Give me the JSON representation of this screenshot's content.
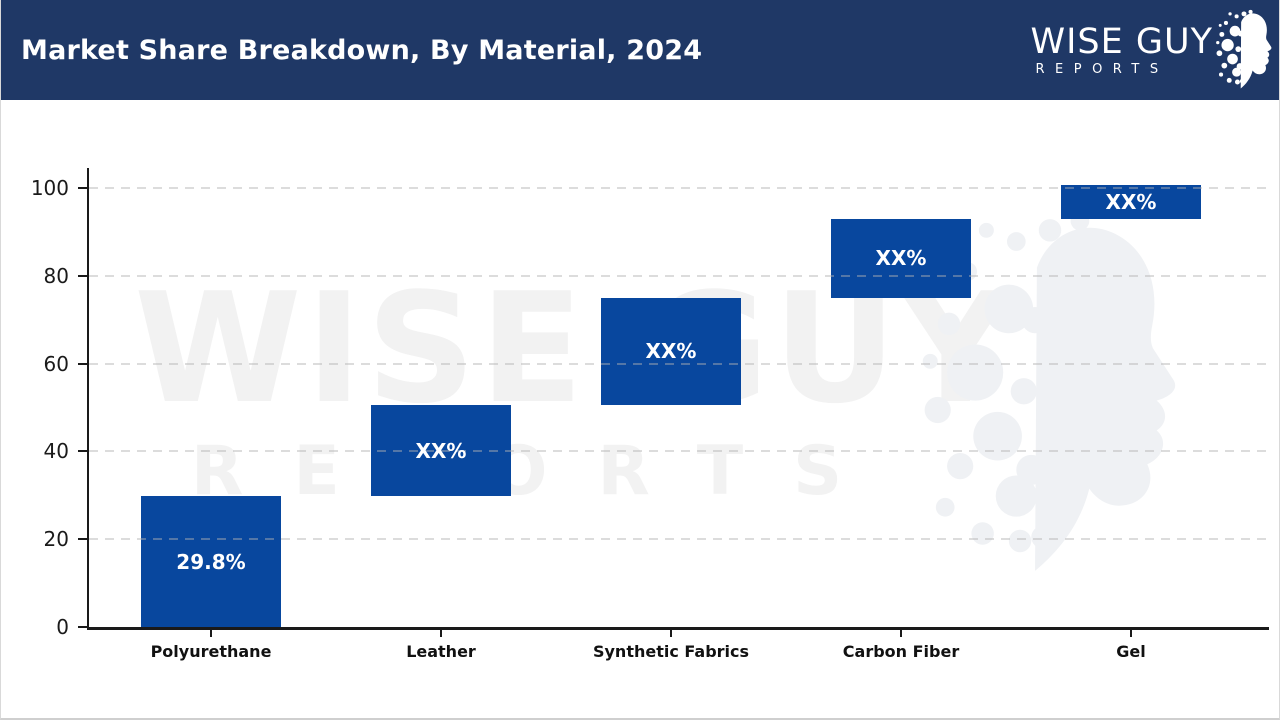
{
  "header": {
    "title": "Market Share Breakdown, By Material, 2024",
    "bg_color": "#1f3866",
    "logo": {
      "name": "WISE GUY",
      "tagline": "REPORTS"
    }
  },
  "watermark": {
    "line1": "WISE GUY",
    "line2": "REPORTS"
  },
  "chart_data": {
    "type": "bar",
    "variant": "floating-waterfall",
    "title": "Market Share Breakdown, By Material, 2024",
    "categories": [
      "Polyurethane",
      "Leather",
      "Synthetic Fabrics",
      "Carbon Fiber",
      "Gel"
    ],
    "segments": [
      {
        "category": "Polyurethane",
        "start": 0,
        "end": 29.8,
        "label": "29.8%"
      },
      {
        "category": "Leather",
        "start": 29.8,
        "end": 50.6,
        "label": "XX%"
      },
      {
        "category": "Synthetic Fabrics",
        "start": 50.6,
        "end": 75.0,
        "label": "XX%"
      },
      {
        "category": "Carbon Fiber",
        "start": 75.0,
        "end": 92.9,
        "label": "XX%"
      },
      {
        "category": "Gel",
        "start": 92.9,
        "end": 100.6,
        "label": "XX%"
      }
    ],
    "xlabel": "",
    "ylabel": "",
    "ylim": [
      0,
      104
    ],
    "yticks": [
      0,
      20,
      40,
      60,
      80,
      100
    ],
    "grid": "horizontal-dashed",
    "grid_color": "#d9d9d9",
    "bar_color": "#08479e",
    "bar_label_color": "#ffffff",
    "legend": "none"
  }
}
